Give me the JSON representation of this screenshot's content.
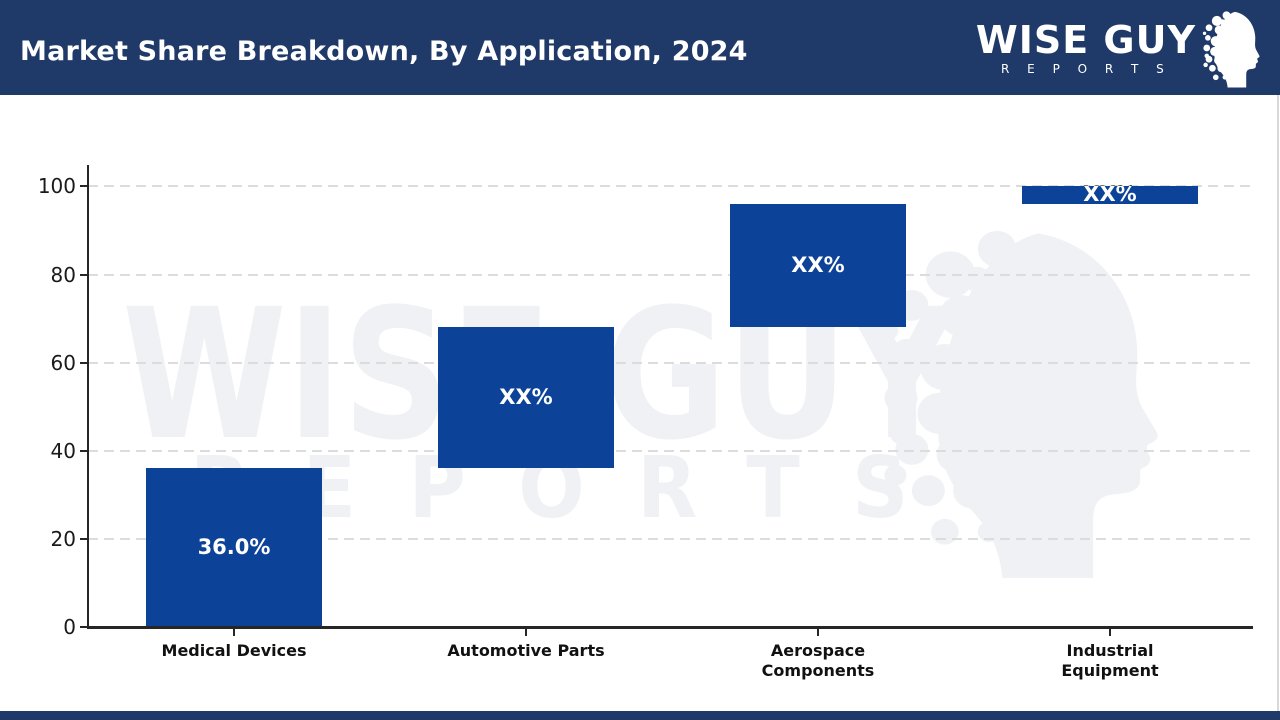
{
  "header": {
    "title": "Market Share Breakdown, By Application, 2024",
    "logo": {
      "wordmark": "WISE GUY",
      "subtext": "R E P O R T S"
    }
  },
  "watermark": {
    "line1": "WISE GUY",
    "line2": "REPORTS"
  },
  "chart_data": {
    "type": "bar",
    "subtype": "waterfall-stacked-percentage",
    "title": "Market Share Breakdown, By Application, 2024",
    "categories": [
      "Medical Devices",
      "Automotive Parts",
      "Aerospace Components",
      "Industrial Equipment"
    ],
    "bars": [
      {
        "category": "Medical Devices",
        "category_lines": [
          "Medical Devices"
        ],
        "start": 0,
        "end": 36,
        "value": 36,
        "label": "36.0%"
      },
      {
        "category": "Automotive Parts",
        "category_lines": [
          "Automotive Parts"
        ],
        "start": 36,
        "end": 68,
        "value": 32,
        "label": "XX%"
      },
      {
        "category": "Aerospace Components",
        "category_lines": [
          "Aerospace",
          "Components"
        ],
        "start": 68,
        "end": 96,
        "value": 28,
        "label": "XX%"
      },
      {
        "category": "Industrial Equipment",
        "category_lines": [
          "Industrial",
          "Equipment"
        ],
        "start": 96,
        "end": 100,
        "value": 4,
        "label": "XX%"
      }
    ],
    "xlabel": "",
    "ylabel": "",
    "ylim": [
      0,
      100
    ],
    "yticks": [
      0,
      20,
      40,
      60,
      80,
      100
    ],
    "grid": "horizontal-dashed",
    "legend": "none",
    "bar_color": "#0c4399",
    "bar_label_color": "#ffffff",
    "edge_label_color": "#111111",
    "grid_color": "#dcdcdc",
    "axis_color": "#262626",
    "header_color": "#1f3a68",
    "watermark_color": "#eff1f4"
  }
}
